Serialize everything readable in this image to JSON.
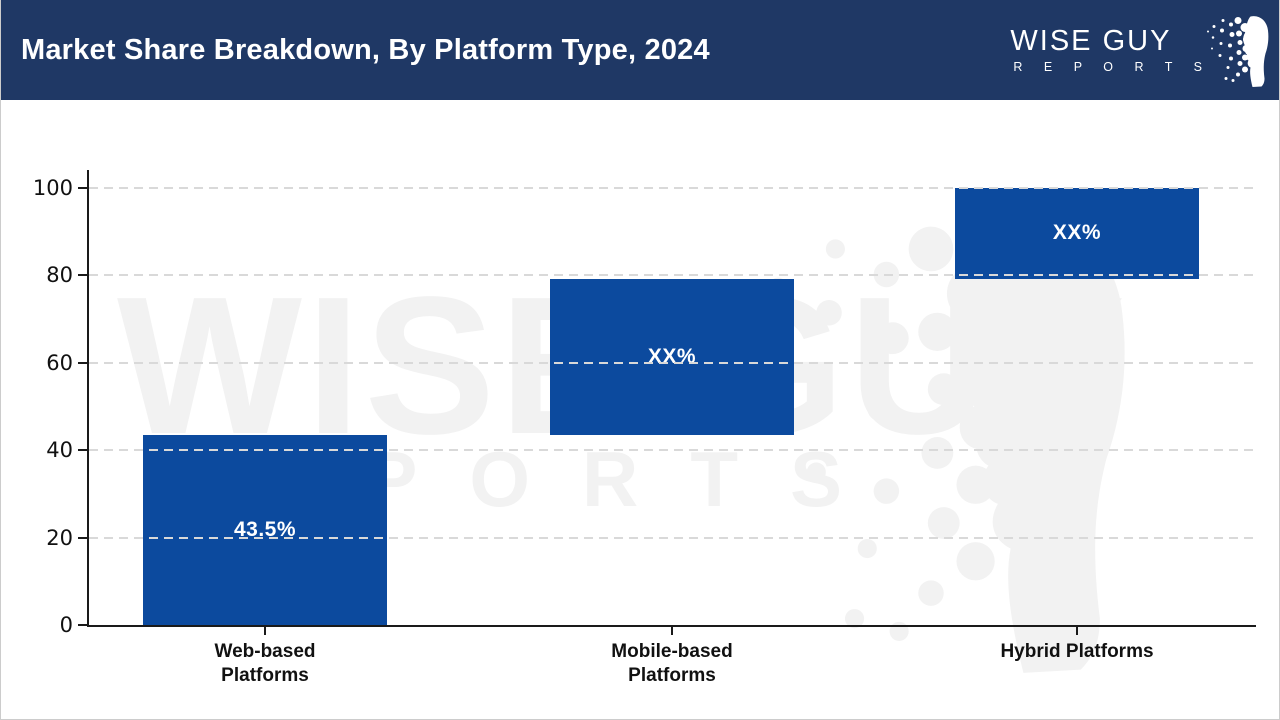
{
  "header": {
    "title": "Market Share Breakdown, By Platform Type, 2024",
    "logo": {
      "wordmark": "WISE GUY",
      "subtext": "R E P O R T S"
    }
  },
  "watermark": {
    "wordmark": "WISE GUY",
    "subtext": "REPORTS"
  },
  "chart_data": {
    "type": "bar",
    "variant": "waterfall",
    "title": "Market Share Breakdown, By Platform Type, 2024",
    "categories": [
      "Web-based\nPlatforms",
      "Mobile-based\nPlatforms",
      "Hybrid Platforms"
    ],
    "segments": [
      {
        "category": "Web-based Platforms",
        "start": 0,
        "end": 43.5,
        "label": "43.5%"
      },
      {
        "category": "Mobile-based Platforms",
        "start": 43.5,
        "end": 79,
        "label": "XX%"
      },
      {
        "category": "Hybrid Platforms",
        "start": 79,
        "end": 100,
        "label": "XX%"
      }
    ],
    "ylim": [
      0,
      100
    ],
    "yticks": [
      0,
      20,
      40,
      60,
      80,
      100
    ],
    "xlabel": "",
    "ylabel": "",
    "grid": "horizontal-dashed",
    "legend": "none"
  },
  "colors": {
    "page_bg": "#FFFFFF",
    "header_bg": "#1F3865",
    "header_text": "#FFFFFF",
    "bar": "#0C4A9E",
    "bar_label": "#FFFFFF",
    "grid": "#D9D9D9",
    "axis": "#1A1A1A",
    "tick_label": "#111111",
    "watermark": "#F2F2F2"
  }
}
